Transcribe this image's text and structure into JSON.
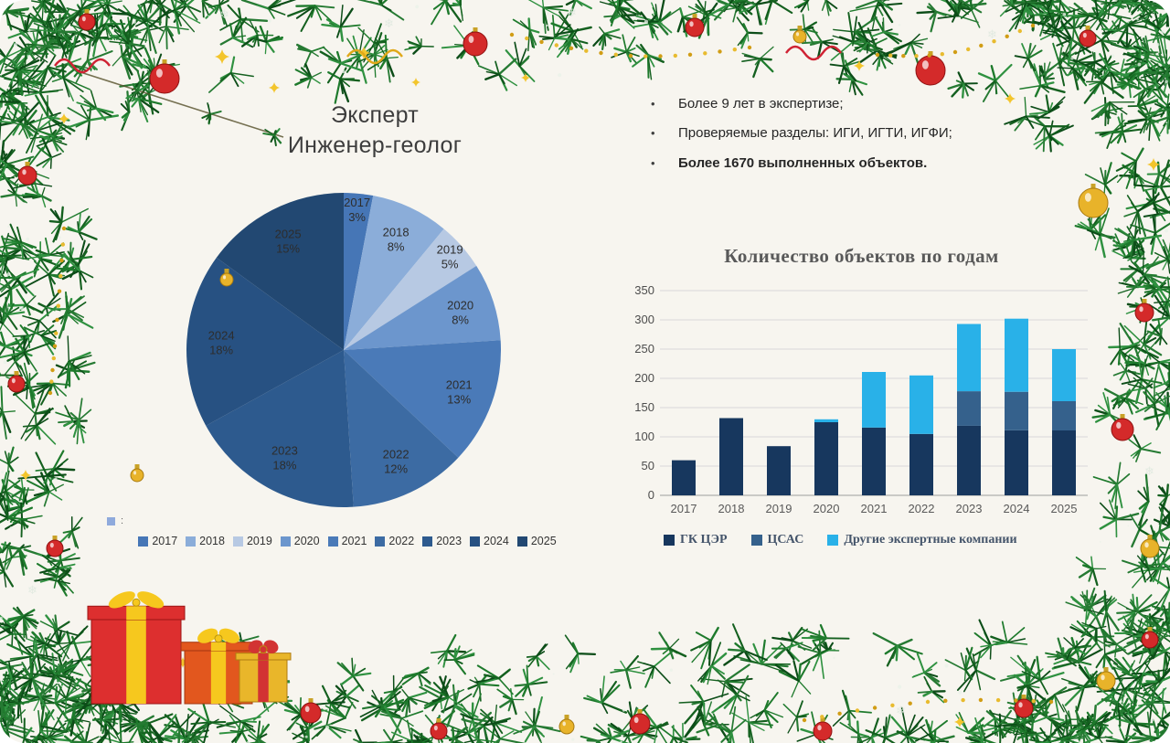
{
  "pie": {
    "title_line1": "Эксперт",
    "title_line2": "Инженер-геолог",
    "stray_legend_label": ":"
  },
  "bullets": {
    "items": [
      {
        "text": "Более 9 лет в экспертизе;",
        "bold": false
      },
      {
        "text": "Проверяемые разделы: ИГИ, ИГТИ, ИГФИ;",
        "bold": false
      },
      {
        "text": "Более 1670 выполненных объектов.",
        "bold": true
      }
    ]
  },
  "bar": {
    "title": "Количество объектов по годам"
  },
  "chart_data": [
    {
      "type": "pie",
      "title": "Эксперт Инженер-геолог",
      "categories": [
        "2017",
        "2018",
        "2019",
        "2020",
        "2021",
        "2022",
        "2023",
        "2024",
        "2025"
      ],
      "values_percent": [
        3,
        8,
        5,
        8,
        13,
        12,
        18,
        18,
        15
      ],
      "colors": [
        "#4676b6",
        "#8badd9",
        "#b7c9e3",
        "#6c96cd",
        "#4a7ab8",
        "#3c6ba3",
        "#2d5a8e",
        "#275182",
        "#224872"
      ],
      "label_format": "year + percent",
      "legend_position": "bottom"
    },
    {
      "type": "bar",
      "stacked": true,
      "title": "Количество объектов по годам",
      "categories": [
        "2017",
        "2018",
        "2019",
        "2020",
        "2021",
        "2022",
        "2023",
        "2024",
        "2025"
      ],
      "series": [
        {
          "name": "ГК ЦЭР",
          "color": "#17375e",
          "values": [
            60,
            132,
            84,
            125,
            116,
            105,
            119,
            111,
            111
          ]
        },
        {
          "name": "ЦСАС",
          "color": "#35618c",
          "values": [
            0,
            0,
            0,
            0,
            0,
            0,
            59,
            66,
            50
          ]
        },
        {
          "name": "Другие экспертные компании",
          "color": "#29b1e8",
          "values": [
            0,
            0,
            0,
            5,
            95,
            100,
            115,
            125,
            89
          ]
        }
      ],
      "totals": [
        60,
        132,
        84,
        130,
        211,
        205,
        293,
        302,
        250
      ],
      "ylim": [
        0,
        350
      ],
      "ytick_step": 50,
      "yticks": [
        0,
        50,
        100,
        150,
        200,
        250,
        300,
        350
      ],
      "grid": true,
      "legend_position": "bottom"
    }
  ]
}
